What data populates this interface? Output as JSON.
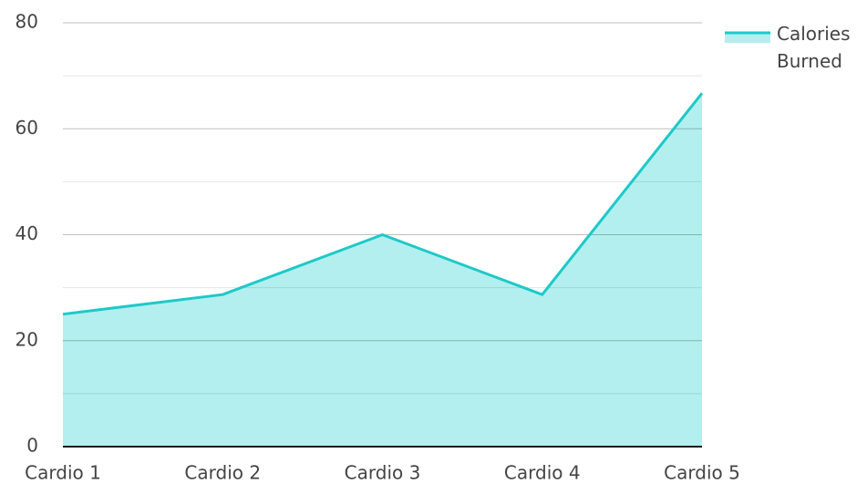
{
  "chart_data": {
    "type": "area",
    "categories": [
      "Cardio 1",
      "Cardio 2",
      "Cardio 3",
      "Cardio 4",
      "Cardio 5"
    ],
    "series": [
      {
        "name": "Calories Burned",
        "color": "#1ec9c9",
        "fill": "#b2efee",
        "values": [
          25,
          28.7,
          40,
          28.7,
          66.7
        ]
      }
    ],
    "ylim": [
      0,
      80
    ],
    "yticks": [
      0,
      20,
      40,
      60,
      80
    ],
    "minor_yticks": [
      10,
      30,
      50,
      70
    ],
    "grid": true,
    "legend": "top-right"
  }
}
